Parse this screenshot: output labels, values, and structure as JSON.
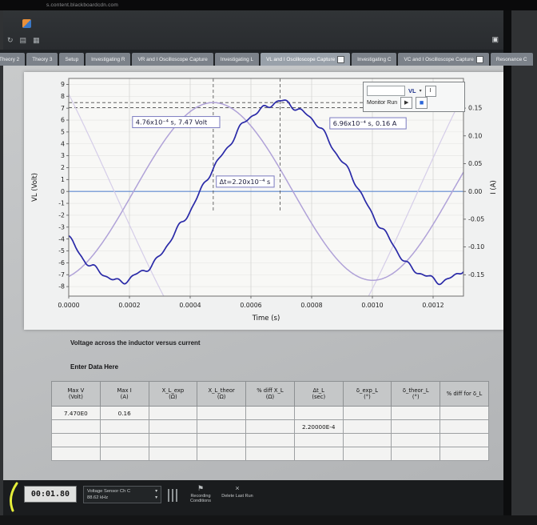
{
  "browser": {
    "url": "s.content.blackboardcdn.com"
  },
  "tabs": [
    {
      "label": "Theory 2"
    },
    {
      "label": "Theory 3"
    },
    {
      "label": "Setup"
    },
    {
      "label": "Investigating R"
    },
    {
      "label": "VR and I Oscilloscope Capture"
    },
    {
      "label": "Investigating L"
    },
    {
      "label": "VL and I Oscilloscope Capture",
      "active": true,
      "icon": true
    },
    {
      "label": "Investigating C"
    },
    {
      "label": "VC and I Oscilloscope Capture",
      "icon": true
    },
    {
      "label": "Resonance C"
    }
  ],
  "icons": {
    "refresh": "↻",
    "folder": "▤",
    "chart": "▦",
    "panel": "▣",
    "play": "▶",
    "stop": "■",
    "flag": "⚑",
    "delete": "×",
    "caret_down": "▾"
  },
  "scope_panel": {
    "legend_vl": "VL",
    "legend_i": "I",
    "monitor_run_label": "Monitor Run"
  },
  "graph": {
    "caption": "Voltage across the inductor versus current"
  },
  "chart_data": {
    "type": "line",
    "title": "",
    "xlabel": "Time (s)",
    "ylabel_left": "VL (Volt)",
    "ylabel_right": "I (A)",
    "xlim": [
      0,
      0.0013
    ],
    "ylim_left": [
      -8.8,
      9.5
    ],
    "grid": true,
    "x_ticks": [
      "0.0000",
      "0.0002",
      "0.0004",
      "0.0006",
      "0.0008",
      "0.0010",
      "0.0012"
    ],
    "y_ticks_left": [
      "9",
      "8",
      "7",
      "6",
      "5",
      "4",
      "3",
      "2",
      "1",
      "0",
      "-1",
      "-2",
      "-3",
      "-4",
      "-5",
      "-6",
      "-7",
      "-8"
    ],
    "y_ticks_right": [
      "0.15",
      "0.10",
      "0.05",
      "0.00",
      "-0.05",
      "-0.10",
      "-0.15"
    ],
    "amps_to_left_axis_units": 46.7,
    "series": [
      {
        "name": "VL-previous-run",
        "color": "#d5cde9",
        "width": 1.2,
        "amplitude_volts": -18,
        "peak_t_s": 0.00065,
        "period_s": 0.002,
        "noise": 0
      },
      {
        "name": "VL",
        "color": "#b0a2d8",
        "width": 1.5,
        "amplitude_volts": 7.47,
        "peak_t_s": 0.000476,
        "period_s": 0.00105,
        "noise": 0
      },
      {
        "name": "I",
        "color": "#2a2aa8",
        "width": 1.7,
        "amplitude_volts": 7.47,
        "amplitude_amps": 0.16,
        "peak_t_s": 0.000696,
        "period_s": 0.00105,
        "noise": 0.33
      }
    ],
    "annotations": {
      "boxes": [
        {
          "id": "vl-peak",
          "text": "4.76x10⁻⁴ s, 7.47 Volt",
          "t": 0.00021,
          "v": 6.3
        },
        {
          "id": "i-peak",
          "text": "6.96x10⁻⁴ s, 0.16 A",
          "t": 0.00086,
          "v": 6.2
        },
        {
          "id": "delta-t",
          "text": "Δt=2.20x10⁻⁴ s",
          "t": 0.000486,
          "v": 1.3
        }
      ],
      "vlines_t": [
        0.000476,
        0.000696
      ],
      "hlines_v": [
        7.47,
        7.05
      ],
      "zero_line_color": "#5d87cf"
    }
  },
  "data_entry": {
    "label": "Enter Data Here",
    "columns": [
      [
        "Max V",
        "(Volt)"
      ],
      [
        "Max I",
        "(A)"
      ],
      [
        "X_L_exp",
        "(Ω)"
      ],
      [
        "X_L_theor",
        "(Ω)"
      ],
      [
        "% diff X_L",
        "(Ω)"
      ],
      [
        "Δt_L",
        "(sec)"
      ],
      [
        "δ_exp_L",
        "(°)"
      ],
      [
        "δ_theor_L",
        "(°)"
      ],
      [
        "% diff for δ_L",
        ""
      ]
    ],
    "rows": [
      [
        "7.470E0",
        "0.16",
        "",
        "",
        "",
        "",
        "",
        "",
        ""
      ],
      [
        "",
        "",
        "",
        "",
        "",
        "2.20000E-4",
        "",
        "",
        ""
      ],
      [
        "",
        "",
        "",
        "",
        "",
        "",
        "",
        "",
        ""
      ],
      [
        "",
        "",
        "",
        "",
        "",
        "",
        "",
        "",
        ""
      ]
    ]
  },
  "bottom_bar": {
    "timer": "00:01.80",
    "sensor_name": "Voltage Sensor Ch C",
    "sensor_rate": "88.62 kHz",
    "recording_conditions_label": "Recording Conditions",
    "delete_last_run_label": "Delete Last Run"
  }
}
